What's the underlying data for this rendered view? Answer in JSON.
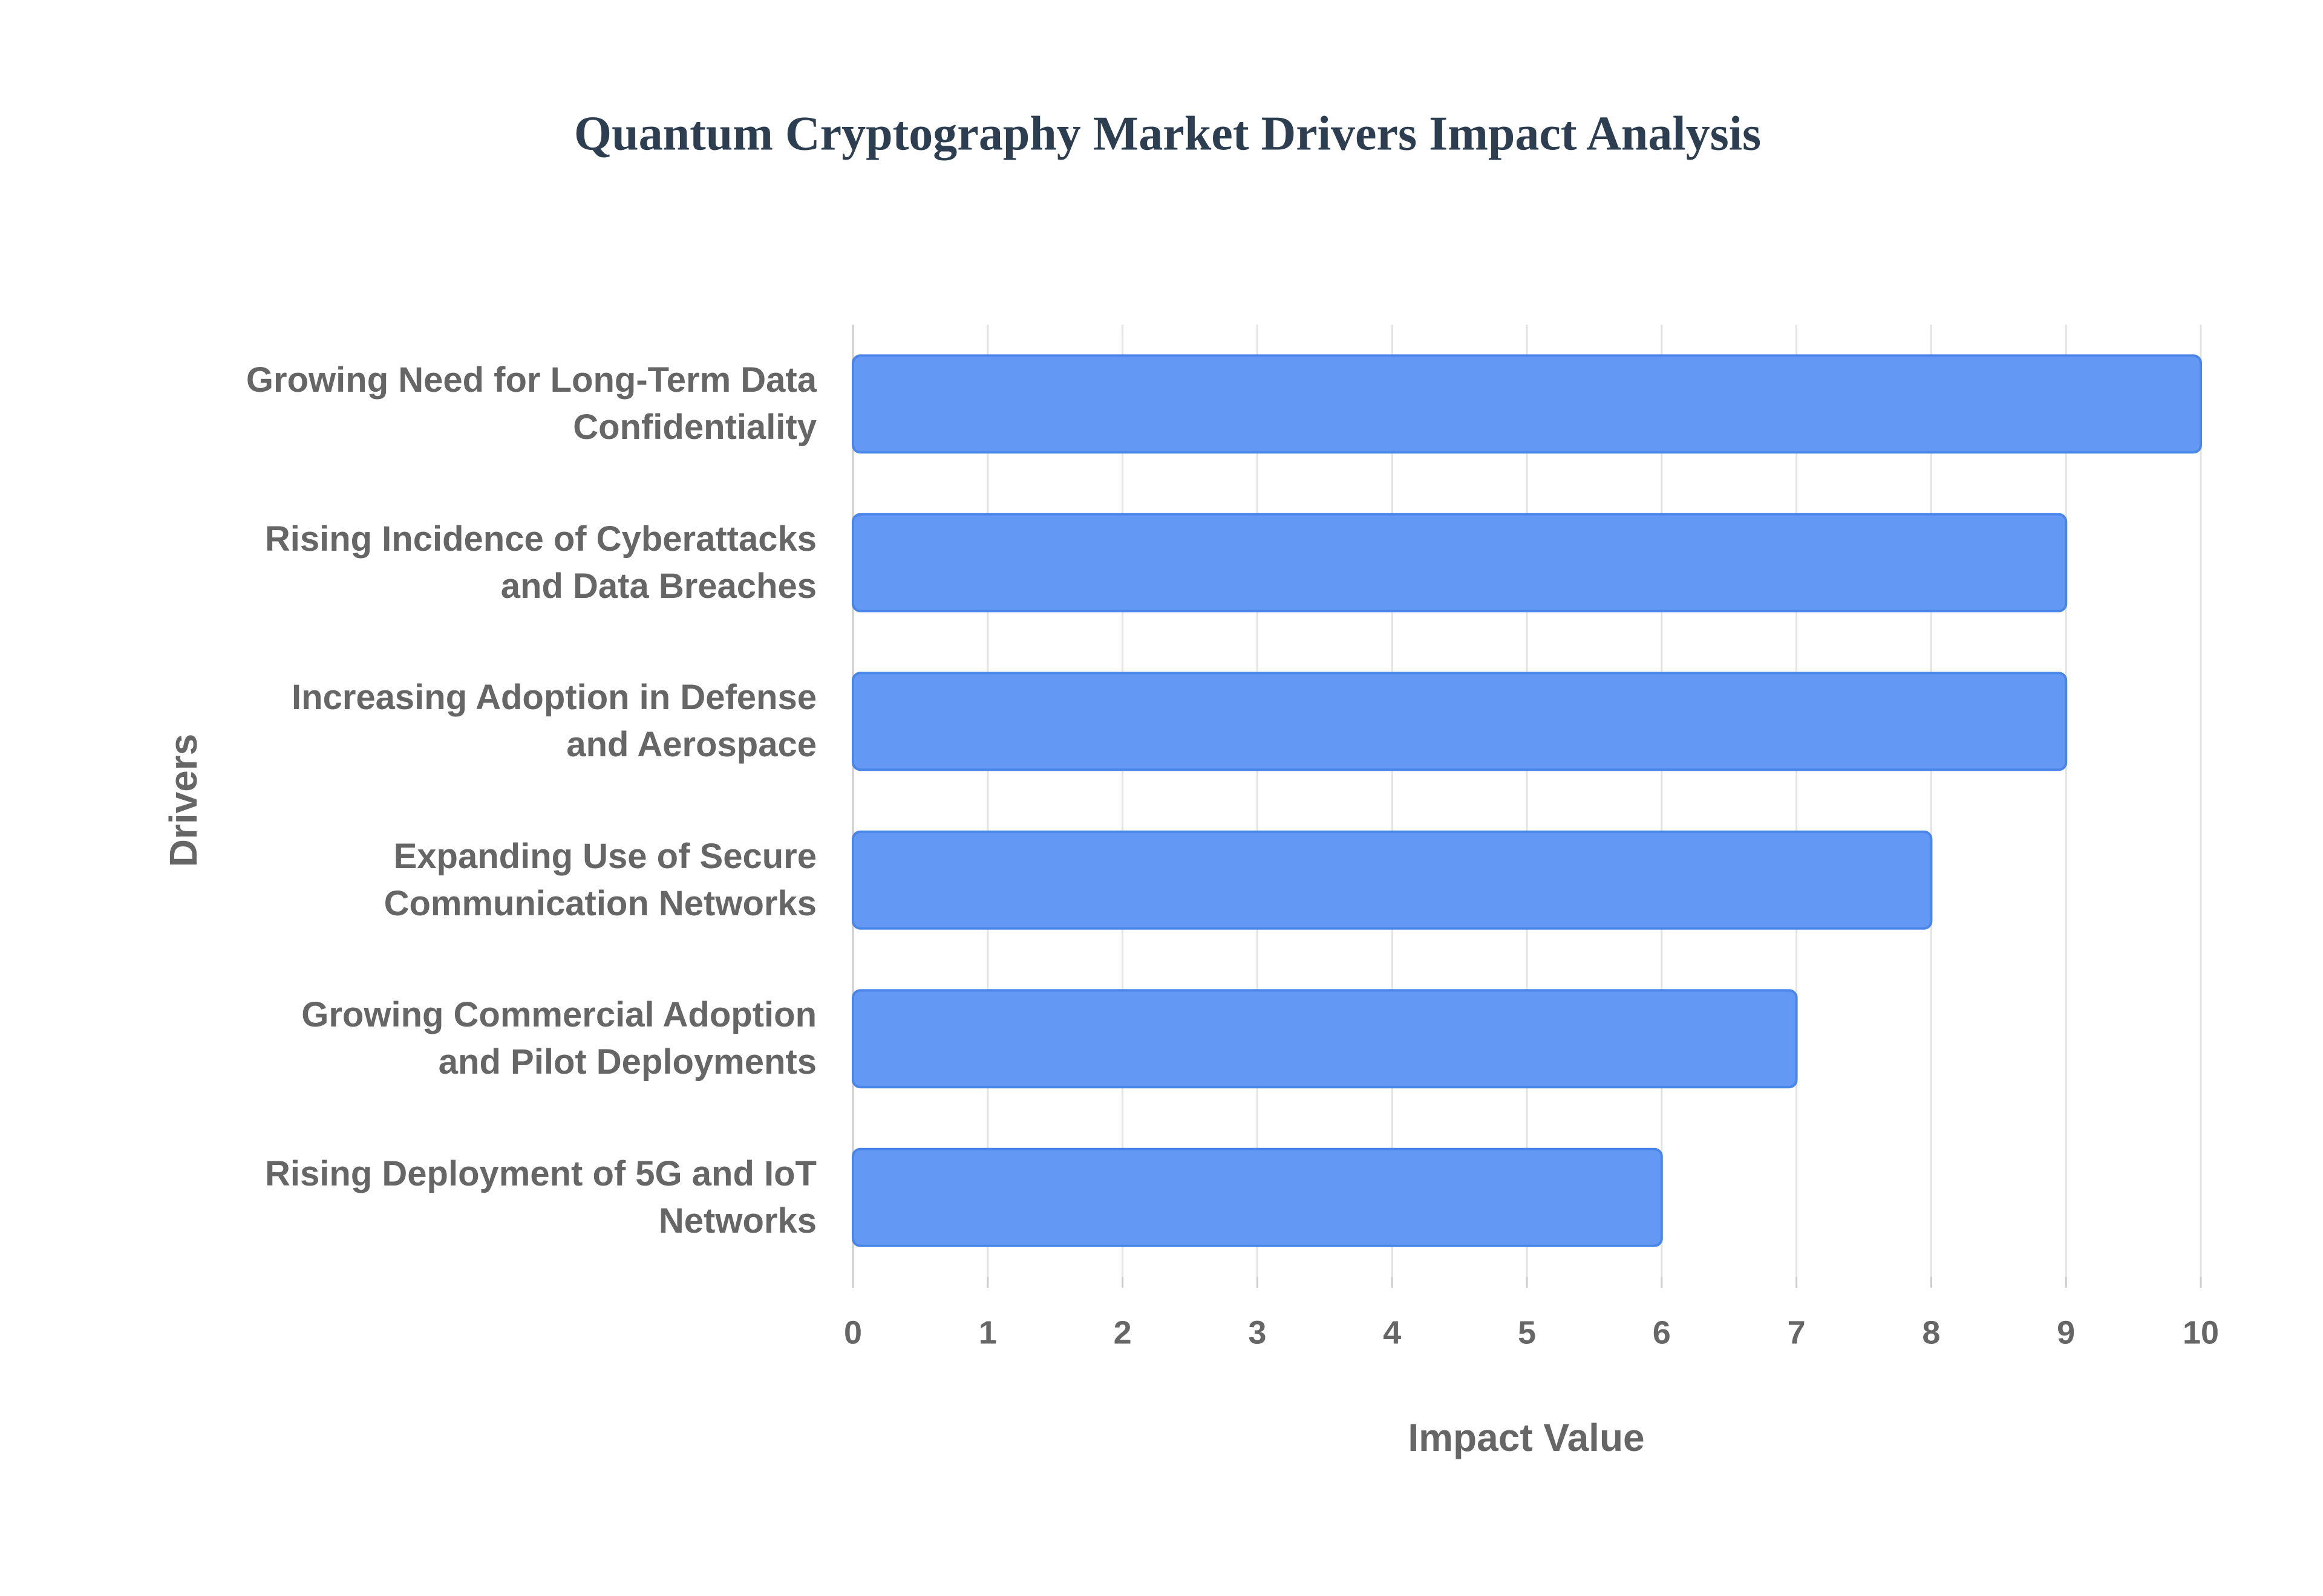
{
  "chart_data": {
    "type": "barh",
    "title": "Quantum Cryptography Market Drivers Impact Analysis",
    "x_label": "Impact Value",
    "y_label": "Drivers",
    "categories": [
      "Growing Need for Long-Term Data Confidentiality",
      "Rising Incidence of Cyberattacks and Data Breaches",
      "Increasing Adoption in Defense and Aerospace",
      "Expanding Use of Secure Communication Networks",
      "Growing Commercial Adoption and Pilot Deployments",
      "Rising Deployment of 5G and IoT Networks"
    ],
    "values": [
      10,
      9,
      9,
      8,
      7,
      6
    ],
    "color": "#6399f5",
    "xlim": [
      0,
      10
    ],
    "xticks": [
      0,
      1,
      2,
      3,
      4,
      5,
      6,
      7,
      8,
      9,
      10
    ],
    "grid": true
  }
}
